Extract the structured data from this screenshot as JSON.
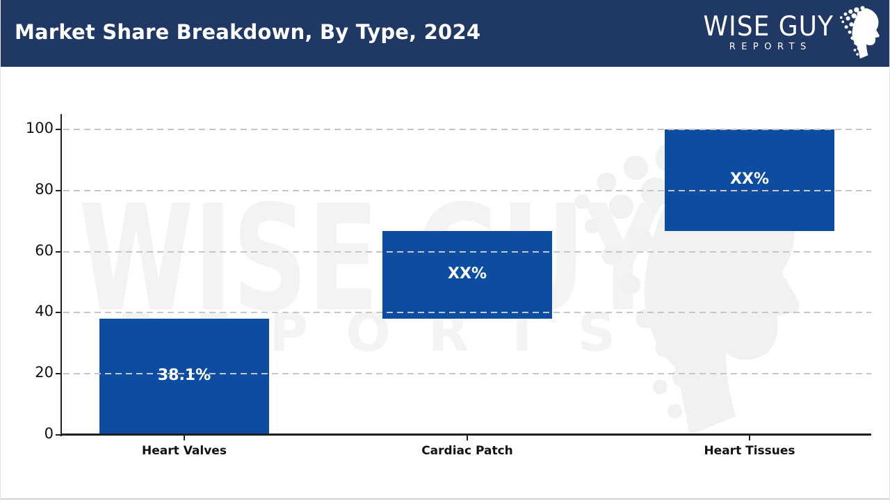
{
  "header": {
    "title": "Market Share Breakdown, By Type, 2024",
    "logo": {
      "wordmark": "WISE GUY",
      "subtitle": "REPORTS"
    }
  },
  "watermark": {
    "line1": "WISE GUY",
    "line2": "REPORTS"
  },
  "chart_data": {
    "type": "bar",
    "subtype": "waterfall",
    "title": "Market Share Breakdown, By Type, 2024",
    "categories": [
      "Heart Valves",
      "Cardiac Patch",
      "Heart Tissues"
    ],
    "segments": [
      {
        "category": "Heart Valves",
        "start": 0,
        "end": 38.1,
        "label": "38.1%"
      },
      {
        "category": "Cardiac Patch",
        "start": 38.1,
        "end": 66.7,
        "label": "XX%"
      },
      {
        "category": "Heart Tissues",
        "start": 66.7,
        "end": 100,
        "label": "XX%"
      }
    ],
    "yticks": [
      0,
      20,
      40,
      60,
      80,
      100
    ],
    "ylim": [
      0,
      105
    ],
    "xlabel": "",
    "ylabel": "",
    "grid": true,
    "grid_axis": "y",
    "grid_style": "dashed",
    "legend": false,
    "colors": {
      "bar": "#0C4DA2",
      "grid": "#c6c6c6",
      "axis": "#1f1f1f",
      "label_text": "#ffffff",
      "tick_text": "#111111"
    }
  },
  "theme": {
    "header_bg": "#203864",
    "header_text": "#ffffff",
    "page_bg": "#ffffff",
    "watermark_color": "#f2f2f2"
  }
}
